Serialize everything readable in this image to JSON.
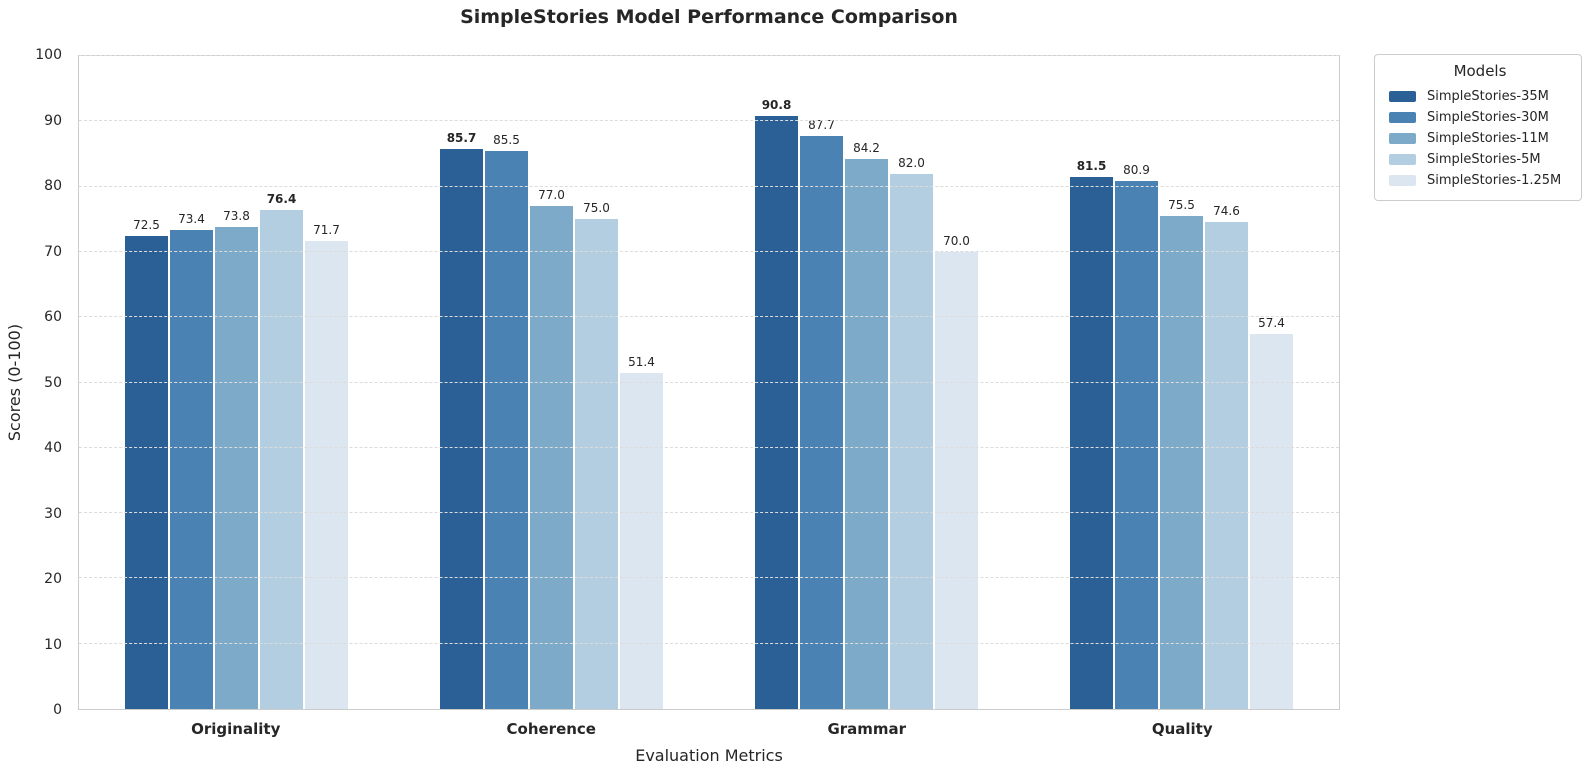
{
  "chart_data": {
    "type": "bar",
    "title": "SimpleStories Model Performance Comparison",
    "xlabel": "Evaluation Metrics",
    "ylabel": "Scores (0-100)",
    "ylim": [
      0,
      100
    ],
    "ytick_step": 10,
    "yticks": [
      0,
      10,
      20,
      30,
      40,
      50,
      60,
      70,
      80,
      90,
      100
    ],
    "grid": "horizontal-dashed",
    "legend_title": "Models",
    "legend_position": "upper-right-outside",
    "categories": [
      "Originality",
      "Coherence",
      "Grammar",
      "Quality"
    ],
    "series": [
      {
        "name": "SimpleStories-35M",
        "color": "#2a6096",
        "values": [
          72.5,
          85.7,
          90.8,
          81.5
        ]
      },
      {
        "name": "SimpleStories-30M",
        "color": "#4a82b4",
        "values": [
          73.4,
          85.5,
          87.7,
          80.9
        ]
      },
      {
        "name": "SimpleStories-11M",
        "color": "#7caac8",
        "values": [
          73.8,
          77.0,
          84.2,
          75.5
        ]
      },
      {
        "name": "SimpleStories-5M",
        "color": "#b4cee1",
        "values": [
          76.4,
          75.0,
          82.0,
          74.6
        ]
      },
      {
        "name": "SimpleStories-1.25M",
        "color": "#dce6f1",
        "values": [
          71.7,
          51.4,
          70.0,
          57.4
        ]
      }
    ],
    "value_label_format": "one-decimal",
    "group_max_label_bold": true,
    "colors": {
      "grid": "#dcdcdc",
      "spine": "#cccccc",
      "text": "#262626",
      "background": "#ffffff"
    }
  }
}
